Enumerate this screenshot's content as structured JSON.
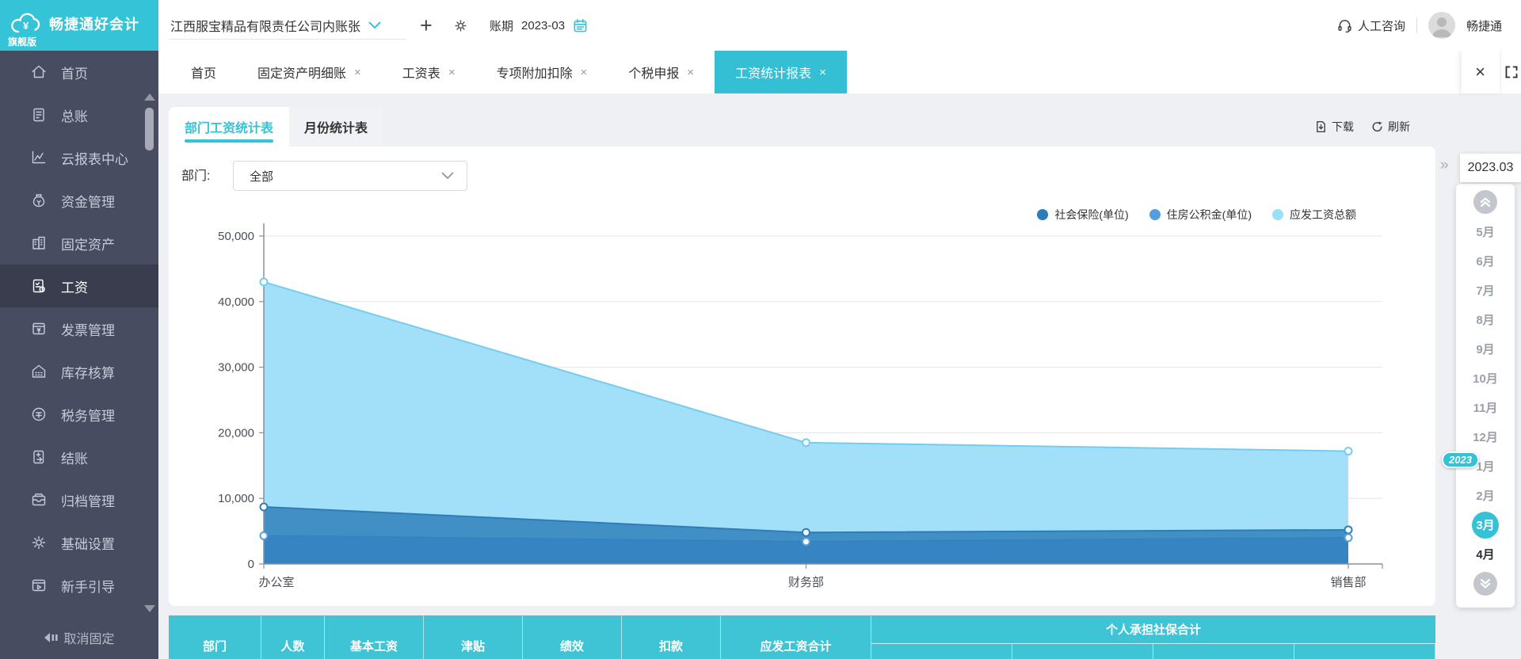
{
  "top_bar": {
    "logo_title": "畅捷通好会计",
    "logo_badge": "旗舰版",
    "company": "江西服宝精品有限责任公司内账张",
    "period_label": "账期",
    "period_value": "2023-03",
    "help_label": "人工咨询",
    "user_name": "畅捷通"
  },
  "window_tabs": {
    "active_index": 5,
    "close_glyph": "×",
    "items": [
      {
        "label": "首页",
        "closable": false
      },
      {
        "label": "固定资产明细账",
        "closable": true
      },
      {
        "label": "工资表",
        "closable": true
      },
      {
        "label": "专项附加扣除",
        "closable": true
      },
      {
        "label": "个税申报",
        "closable": true
      },
      {
        "label": "工资统计报表",
        "closable": true
      }
    ]
  },
  "sidebar": {
    "active_index": 5,
    "unpin_label": "取消固定",
    "items": [
      {
        "label": "首页",
        "icon": "home-icon"
      },
      {
        "label": "总账",
        "icon": "ledger-icon"
      },
      {
        "label": "云报表中心",
        "icon": "report-chart-icon"
      },
      {
        "label": "资金管理",
        "icon": "money-bag-icon"
      },
      {
        "label": "固定资产",
        "icon": "building-icon"
      },
      {
        "label": "工资",
        "icon": "salary-sheet-icon"
      },
      {
        "label": "发票管理",
        "icon": "invoice-icon"
      },
      {
        "label": "库存核算",
        "icon": "warehouse-icon"
      },
      {
        "label": "税务管理",
        "icon": "tax-icon"
      },
      {
        "label": "结账",
        "icon": "closing-icon"
      },
      {
        "label": "归档管理",
        "icon": "archive-icon"
      },
      {
        "label": "基础设置",
        "icon": "settings-icon"
      },
      {
        "label": "新手引导",
        "icon": "guide-icon"
      }
    ]
  },
  "report_tabs": {
    "active": "部门工资统计表",
    "inactive": "月份统计表"
  },
  "toolbar": {
    "download_label": "下载",
    "refresh_label": "刷新"
  },
  "filter": {
    "label": "部门:",
    "value": "全部"
  },
  "period_panel": {
    "current": "2023.03",
    "year_badge": "2023",
    "selected": "3月",
    "emphasis": "4月",
    "months": [
      "5月",
      "6月",
      "7月",
      "8月",
      "9月",
      "10月",
      "11月",
      "12月",
      "1月",
      "2月",
      "3月",
      "4月"
    ]
  },
  "chart_data": {
    "type": "area",
    "title": "",
    "xlabel": "",
    "ylabel": "",
    "categories": [
      "办公室",
      "财务部",
      "销售部"
    ],
    "series": [
      {
        "name": "社会保险(单位)",
        "color": "#2d7dbb",
        "values": [
          8700,
          4800,
          5200
        ]
      },
      {
        "name": "住房公积金(单位)",
        "color": "#559fdc",
        "values": [
          4300,
          3400,
          4000
        ]
      },
      {
        "name": "应发工资总额",
        "color": "#9adef8",
        "line": "#74cdf0",
        "values": [
          43000,
          18500,
          17200
        ]
      }
    ],
    "ylim": [
      0,
      50000
    ],
    "yticks": [
      0,
      10000,
      20000,
      30000,
      40000,
      50000
    ],
    "ytick_labels": [
      "0",
      "10,000",
      "20,000",
      "30,000",
      "40,000",
      "50,000"
    ],
    "grid": true,
    "legend_position": "top-right"
  },
  "bottom_table": {
    "columns": [
      "部门",
      "人数",
      "基本工资",
      "津贴",
      "绩效",
      "扣款",
      "应发工资合计"
    ],
    "group_header": "个人承担社保合计"
  },
  "colors": {
    "teal": "#35c2d6",
    "sidebar_bg": "#484c61",
    "table_header": "#3ec4d5"
  }
}
